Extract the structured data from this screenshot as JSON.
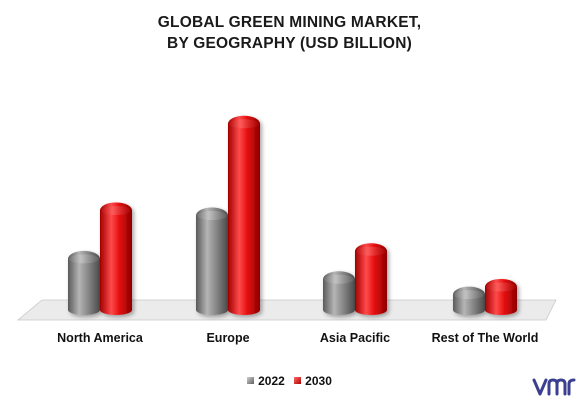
{
  "title_line1": "GLOBAL GREEN MINING MARKET,",
  "title_line2": "BY GEOGRAPHY (USD BILLION)",
  "logo_text": "vmr",
  "colors": {
    "s2022": "#808080",
    "s2030": "#e31010",
    "floor": "#ebebeb"
  },
  "chart_data": {
    "type": "bar",
    "title": "GLOBAL GREEN MINING MARKET, BY GEOGRAPHY (USD BILLION)",
    "categories": [
      "North America",
      "Europe",
      "Asia Pacific",
      "Rest of The World"
    ],
    "series": [
      {
        "name": "2022",
        "values": [
          2.2,
          3.9,
          1.4,
          0.8
        ]
      },
      {
        "name": "2030",
        "values": [
          4.1,
          7.5,
          2.5,
          1.1
        ]
      }
    ],
    "ylim": [
      0,
      8
    ],
    "grid": false,
    "legend_position": "bottom"
  }
}
